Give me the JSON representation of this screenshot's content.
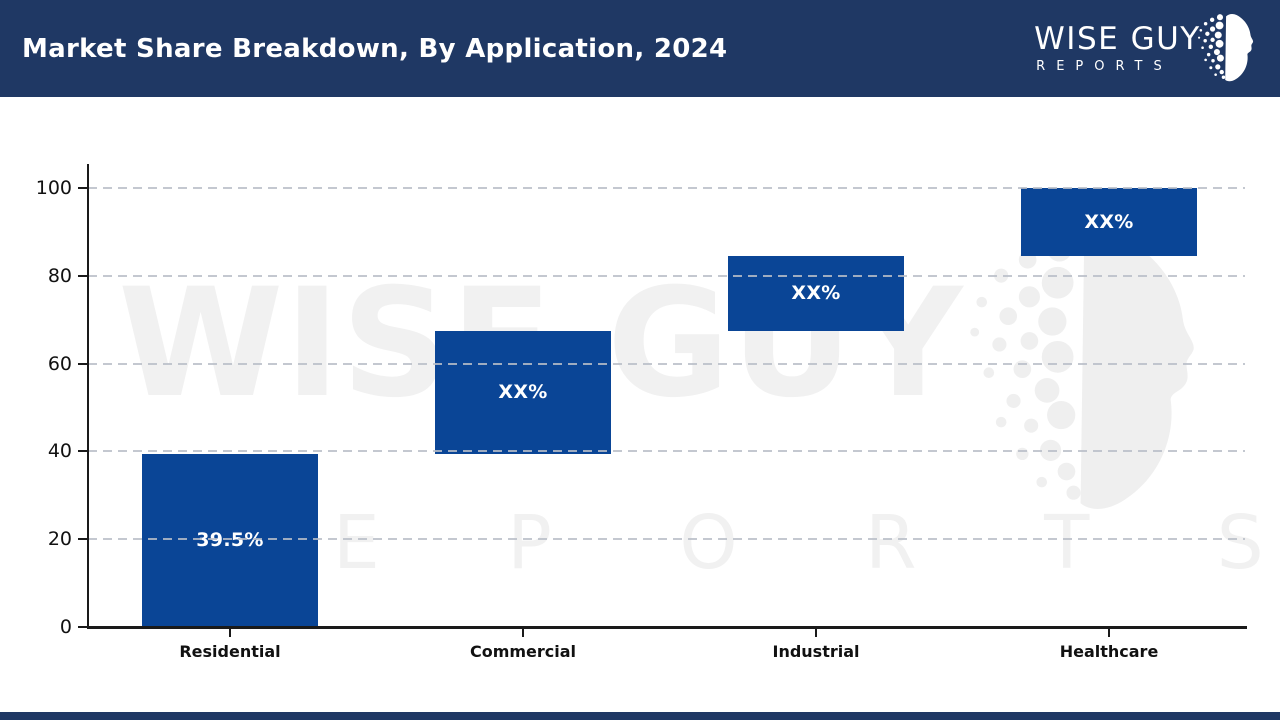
{
  "header": {
    "title": "Market Share Breakdown, By Application, 2024",
    "logo": {
      "wordmark": "WISE GUY",
      "subtitle": "REPORTS"
    },
    "bg_color": "#1f3864",
    "text_color": "#ffffff"
  },
  "watermark": {
    "wordmark": "WISE GUY",
    "subtitle": "R E P O R T S"
  },
  "footer": {
    "bg_color": "#1f3864"
  },
  "chart_data": {
    "type": "bar",
    "variant": "waterfall-cumulative-percent",
    "title": "Market Share Breakdown, By Application, 2024",
    "categories": [
      "Residential",
      "Commercial",
      "Industrial",
      "Healthcare"
    ],
    "series": [
      {
        "name": "Market Share %",
        "segments": [
          {
            "category": "Residential",
            "start": 0,
            "end": 39.5,
            "label": "39.5%"
          },
          {
            "category": "Commercial",
            "start": 39.5,
            "end": 67.5,
            "label": "XX%"
          },
          {
            "category": "Industrial",
            "start": 67.5,
            "end": 84.5,
            "label": "XX%"
          },
          {
            "category": "Healthcare",
            "start": 84.5,
            "end": 100,
            "label": "XX%"
          }
        ]
      }
    ],
    "xlabel": "",
    "ylabel": "",
    "ylim": [
      0,
      105
    ],
    "yticks": [
      0,
      20,
      40,
      60,
      80,
      100
    ],
    "grid": "horizontal-dashed",
    "gridline_color": "#d0d0d0",
    "legend": "none",
    "bar_color": "#0a4596",
    "bar_label_color": "#ffffff",
    "axis_color": "#1a1a1a"
  }
}
